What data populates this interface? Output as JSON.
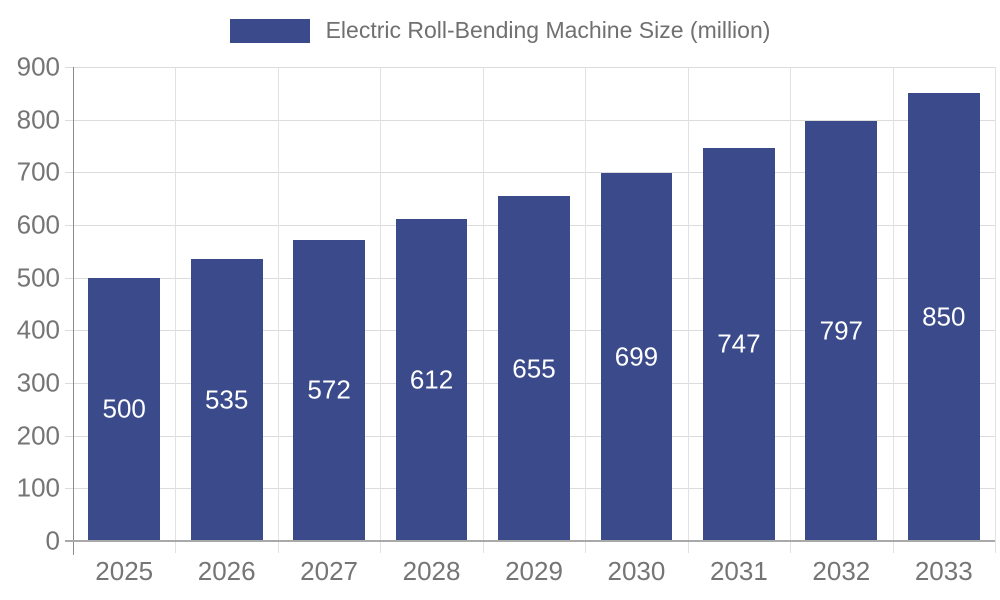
{
  "legend": {
    "label": "Electric Roll-Bending Machine Size (million)"
  },
  "chart_data": {
    "type": "bar",
    "title": "Electric Roll-Bending Machine Size (million)",
    "categories": [
      "2025",
      "2026",
      "2027",
      "2028",
      "2029",
      "2030",
      "2031",
      "2032",
      "2033"
    ],
    "values": [
      500,
      535,
      572,
      612,
      655,
      699,
      747,
      797,
      850
    ],
    "yticks": [
      0,
      100,
      200,
      300,
      400,
      500,
      600,
      700,
      800,
      900
    ],
    "ylim": [
      0,
      900
    ],
    "xlabel": "",
    "ylabel": "",
    "grid": true,
    "legend_position": "top",
    "bar_color": "#3a4a8b",
    "value_label_color": "#ffffff",
    "axis_text_color": "#757575",
    "gridline_color": "#dcdcdc",
    "axis_line_color": "#a9a9a9"
  }
}
